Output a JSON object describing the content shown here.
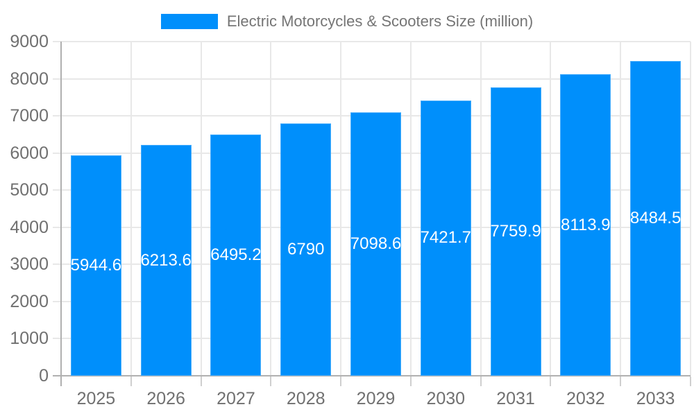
{
  "legend": {
    "label": "Electric Motorcycles & Scooters Size (million)"
  },
  "chart_data": {
    "type": "bar",
    "title": "Electric Motorcycles & Scooters Size (million)",
    "categories": [
      "2025",
      "2026",
      "2027",
      "2028",
      "2029",
      "2030",
      "2031",
      "2032",
      "2033"
    ],
    "values": [
      5944.6,
      6213.6,
      6495.2,
      6790,
      7098.6,
      7421.7,
      7759.9,
      8113.9,
      8484.5
    ],
    "value_labels": [
      "5944.6",
      "6213.6",
      "6495.2",
      "6790",
      "7098.6",
      "7421.7",
      "7759.9",
      "8113.9",
      "8484.5"
    ],
    "xlabel": "",
    "ylabel": "",
    "ylim": [
      0,
      9000
    ],
    "y_ticks": [
      0,
      1000,
      2000,
      3000,
      4000,
      5000,
      6000,
      7000,
      8000,
      9000
    ],
    "grid": true,
    "legend_position": "top",
    "colors": {
      "bar": "#008FFB",
      "gridline": "#e8e8e8",
      "axis": "#b0b0b0",
      "minor_tick": "#cfcfcf",
      "tick_label": "#707070",
      "title": "#757575",
      "value_label": "#ffffff"
    }
  }
}
